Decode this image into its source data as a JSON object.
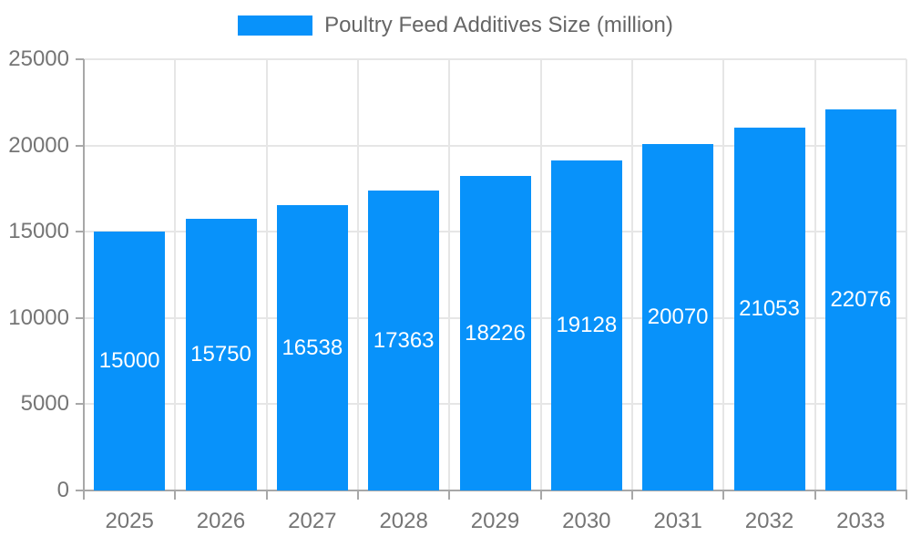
{
  "legend": {
    "label": "Poultry Feed Additives Size (million)"
  },
  "colors": {
    "bar": "#0892FA",
    "grid": "#E6E6E6",
    "axis": "#A8A8A8",
    "axis_label": "#757575",
    "legend_text": "#666666",
    "bar_label": "#FFFFFF"
  },
  "chart_data": {
    "type": "bar",
    "title": "",
    "legend": "Poultry Feed Additives Size (million)",
    "legend_position": "top",
    "categories": [
      "2025",
      "2026",
      "2027",
      "2028",
      "2029",
      "2030",
      "2031",
      "2032",
      "2033"
    ],
    "values": [
      15000,
      15750,
      16538,
      17363,
      18226,
      19128,
      20070,
      21053,
      22076
    ],
    "xlabel": "",
    "ylabel": "",
    "ylim": [
      0,
      25000
    ],
    "yticks": [
      0,
      5000,
      10000,
      15000,
      20000,
      25000
    ],
    "grid": true
  }
}
